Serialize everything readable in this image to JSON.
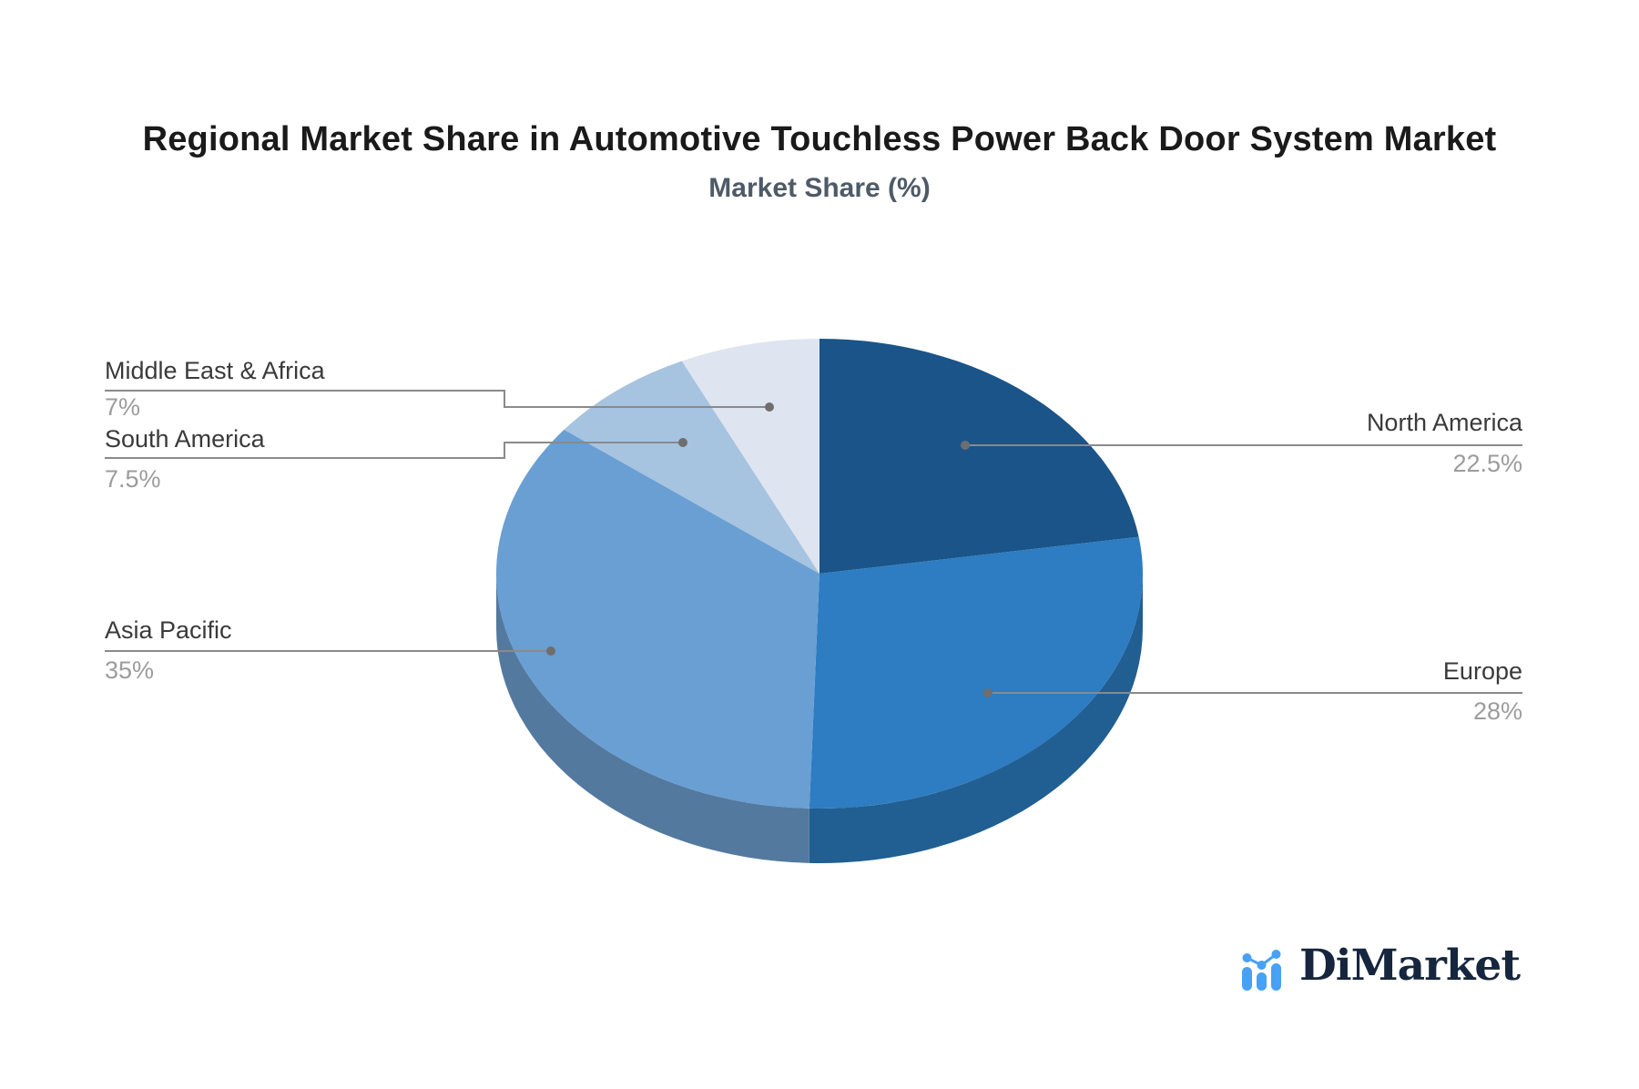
{
  "header": {
    "title": "Regional Market Share in Automotive Touchless Power Back Door System Market",
    "subtitle": "Market Share (%)"
  },
  "chart_data": {
    "type": "pie",
    "style": "3d-pie",
    "title": "Regional Market Share in Automotive Touchless Power Back Door System Market",
    "subtitle": "Market Share (%)",
    "unit": "%",
    "start_angle": "12-oclock",
    "direction": "clockwise",
    "legend_position": "callout-labels",
    "slices": [
      {
        "label": "North America",
        "value": 22.5,
        "display_value": "22.5%",
        "color": "#1A5489",
        "callout_side": "right"
      },
      {
        "label": "Europe",
        "value": 28,
        "display_value": "28%",
        "color": "#2E7CC1",
        "side_color": "#215E92",
        "callout_side": "right"
      },
      {
        "label": "Asia Pacific",
        "value": 35,
        "display_value": "35%",
        "color": "#699FD3",
        "side_color": "#54799E",
        "callout_side": "left"
      },
      {
        "label": "South America",
        "value": 7.5,
        "display_value": "7.5%",
        "color": "#A6C3E0",
        "callout_side": "left"
      },
      {
        "label": "Middle East & Africa",
        "value": 7,
        "display_value": "7%",
        "color": "#DEE5F0",
        "callout_side": "left"
      }
    ],
    "label_text_color": "#3A3A3A",
    "value_text_color": "#9C9C9C",
    "callout_line_color": "#8A8A8A"
  },
  "logo": {
    "text": "DiMarket",
    "icon": "bar-line-chart-icon",
    "icon_color": "#47A1F5",
    "text_color": "#15263E"
  }
}
